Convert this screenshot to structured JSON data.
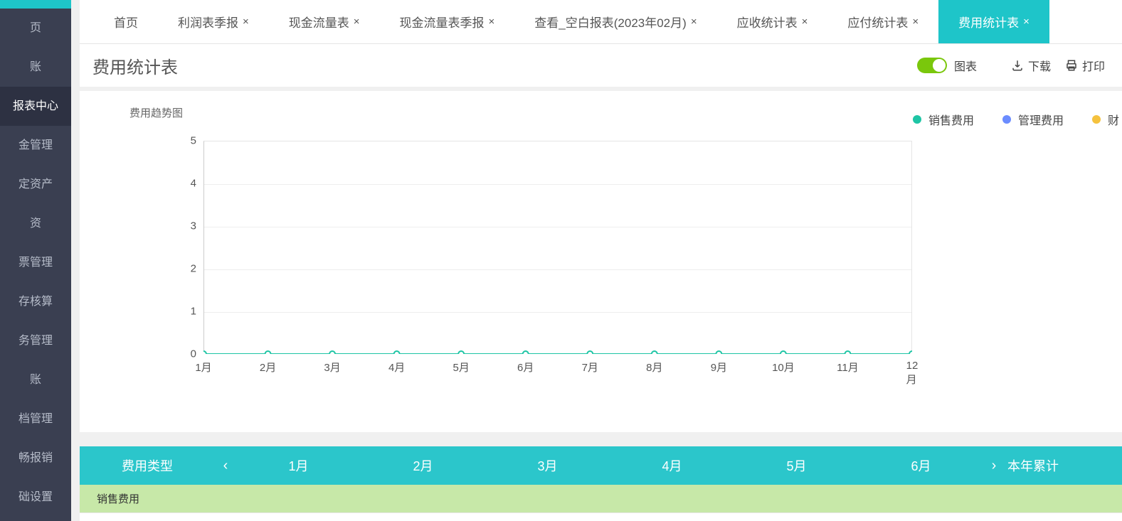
{
  "sidebar": {
    "items": [
      {
        "label": "页"
      },
      {
        "label": "账"
      },
      {
        "label": "报表中心"
      },
      {
        "label": "金管理"
      },
      {
        "label": "定资产"
      },
      {
        "label": "资"
      },
      {
        "label": "票管理"
      },
      {
        "label": "存核算"
      },
      {
        "label": "务管理"
      },
      {
        "label": "账"
      },
      {
        "label": "档管理"
      },
      {
        "label": "畅报销"
      },
      {
        "label": "础设置"
      }
    ],
    "active_index": 2
  },
  "tabs": {
    "items": [
      {
        "label": "首页",
        "closable": false
      },
      {
        "label": "利润表季报",
        "closable": true
      },
      {
        "label": "现金流量表",
        "closable": true
      },
      {
        "label": "现金流量表季报",
        "closable": true
      },
      {
        "label": "查看_空白报表(2023年02月)",
        "closable": true
      },
      {
        "label": "应收统计表",
        "closable": true
      },
      {
        "label": "应付统计表",
        "closable": true
      },
      {
        "label": "费用统计表",
        "closable": true
      }
    ],
    "active_index": 7
  },
  "header": {
    "title": "费用统计表",
    "toggle_label": "图表",
    "download_label": "下载",
    "print_label": "打印"
  },
  "chart": {
    "title": "费用趋势图",
    "type": "line",
    "legend": [
      {
        "label": "销售费用",
        "color": "#1ec5a5"
      },
      {
        "label": "管理费用",
        "color": "#6b8cff"
      },
      {
        "label": "财",
        "color": "#f5c23e"
      }
    ],
    "x_labels": [
      "1月",
      "2月",
      "3月",
      "4月",
      "5月",
      "6月",
      "7月",
      "8月",
      "9月",
      "10月",
      "11月",
      "12月"
    ],
    "y_ticks": [
      0,
      1,
      2,
      3,
      4,
      5
    ],
    "ylim": [
      0,
      5
    ],
    "series": [
      {
        "name": "销售费用",
        "color": "#1ec5a5",
        "values": [
          0,
          0,
          0,
          0,
          0,
          0,
          0,
          0,
          0,
          0,
          0,
          0
        ]
      }
    ],
    "background_color": "#ffffff",
    "grid_color": "#eeeeee",
    "axis_color": "#cccccc",
    "marker": "circle",
    "marker_size": 6,
    "line_width": 2
  },
  "table": {
    "type_header": "费用类型",
    "months": [
      "1月",
      "2月",
      "3月",
      "4月",
      "5月",
      "6月"
    ],
    "total_header": "本年累计",
    "rows": [
      {
        "type": "销售费用",
        "highlight": true,
        "values": [
          "",
          "",
          "",
          "",
          "",
          ""
        ]
      }
    ],
    "header_bg": "#2bc6cb",
    "highlight_bg": "#c7e8a8"
  }
}
